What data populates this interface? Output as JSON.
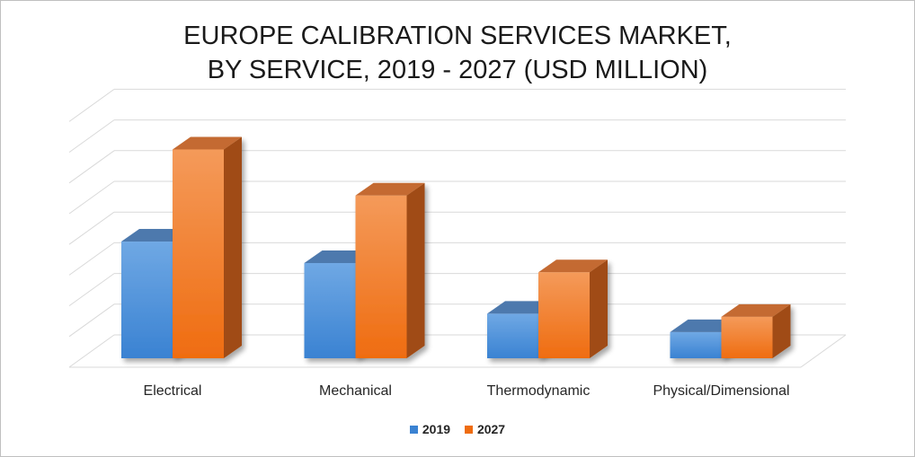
{
  "chart_data": {
    "type": "bar",
    "title_lines": [
      "EUROPE CALIBRATION SERVICES MARKET,",
      "BY SERVICE, 2019 - 2027 (USD MILLION)"
    ],
    "categories": [
      "Electrical",
      "Mechanical",
      "Thermodynamic",
      "Physical/Dimensional"
    ],
    "series": [
      {
        "name": "2019",
        "values": [
          3.8,
          3.1,
          1.45,
          0.85
        ]
      },
      {
        "name": "2027",
        "values": [
          6.8,
          5.3,
          2.8,
          1.35
        ]
      }
    ],
    "ylim": [
      0,
      8
    ],
    "grid": true,
    "legend_position": "bottom",
    "colors": {
      "2019": {
        "front_top": "#6fa8e4",
        "front_bottom": "#3a82d2",
        "side": "#2f5f9c",
        "top": "#4d79ad"
      },
      "2027": {
        "front_top": "#f49a5a",
        "front_bottom": "#ef6c10",
        "side": "#a04b12",
        "top": "#c46a30"
      },
      "grid": "#d9d9d9",
      "floor": "#d9d9d9"
    }
  }
}
